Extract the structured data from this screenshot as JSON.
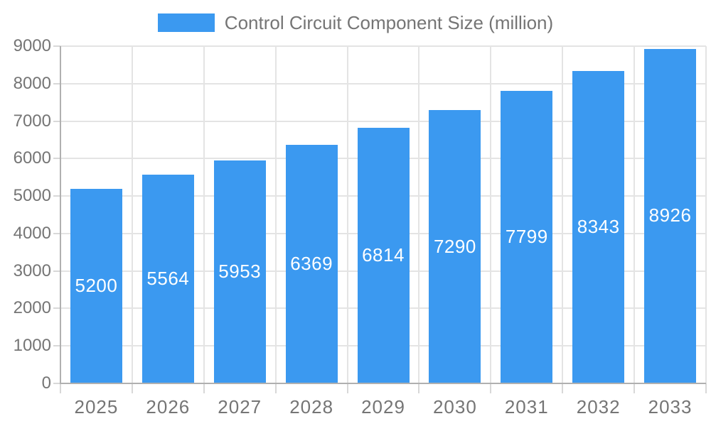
{
  "chart_data": {
    "type": "bar",
    "title": "",
    "legend": {
      "label": "Control Circuit Component Size (million)",
      "position": "top"
    },
    "categories": [
      "2025",
      "2026",
      "2027",
      "2028",
      "2029",
      "2030",
      "2031",
      "2032",
      "2033"
    ],
    "values": [
      5200,
      5564,
      5953,
      6369,
      6814,
      7290,
      7799,
      8343,
      8926
    ],
    "value_labels_shown": true,
    "xlabel": "",
    "ylabel": "",
    "ylim": [
      0,
      9000
    ],
    "ytick_step": 1000,
    "yticks": [
      0,
      1000,
      2000,
      3000,
      4000,
      5000,
      6000,
      7000,
      8000,
      9000
    ],
    "grid": true,
    "colors": {
      "bar": "#3B99F0",
      "value_label": "#FFFFFF",
      "axis_text": "#757575",
      "gridline": "#E4E4E4",
      "axis_line": "#B0B0B0",
      "tick": "#D8D8D8",
      "background": "#FFFFFF"
    }
  }
}
